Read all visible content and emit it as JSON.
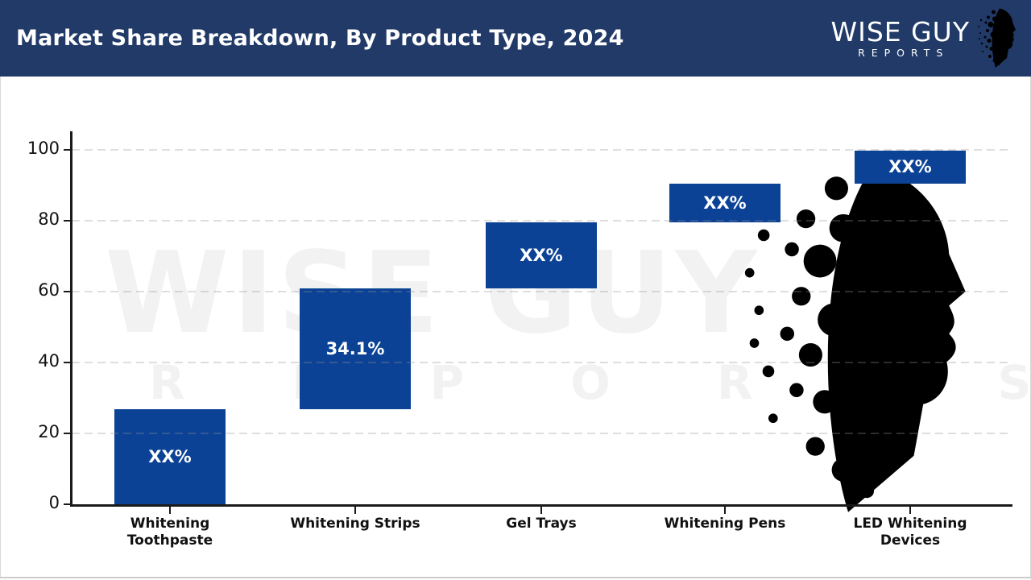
{
  "header": {
    "title": "Market Share Breakdown, By Product Type, 2024",
    "logo": {
      "line1": "WISE GUY",
      "line2": "REPORTS"
    }
  },
  "watermark": {
    "line1": "WISE GUY",
    "line2": "R E P O R T S"
  },
  "chart_data": {
    "type": "bar",
    "subtype": "waterfall",
    "title": "Market Share Breakdown, By Product Type, 2024",
    "categories": [
      "Whitening Toothpaste",
      "Whitening Strips",
      "Gel Trays",
      "Whitening Pens",
      "LED Whitening Devices"
    ],
    "segments": [
      {
        "category": "Whitening Toothpaste",
        "start": 0,
        "end": 26.9,
        "label": "XX%"
      },
      {
        "category": "Whitening Strips",
        "start": 26.9,
        "end": 61.0,
        "label": "34.1%"
      },
      {
        "category": "Gel Trays",
        "start": 61.0,
        "end": 79.6,
        "label": "XX%"
      },
      {
        "category": "Whitening Pens",
        "start": 79.6,
        "end": 90.5,
        "label": "XX%"
      },
      {
        "category": "LED Whitening Devices",
        "start": 90.5,
        "end": 99.8,
        "label": "XX%"
      }
    ],
    "y_ticks": [
      0,
      20,
      40,
      60,
      80,
      100
    ],
    "ylim": [
      0,
      105
    ],
    "xlabel": "",
    "ylabel": "",
    "bar_color": "#0b4295",
    "legend": "none",
    "grid": "horizontal-dashed"
  },
  "colors": {
    "header_bg": "#213a68",
    "bar": "#0b4295",
    "axis": "#1a1a1a",
    "grid": "#d9d9d9",
    "watermark": "#f2f2f2"
  }
}
